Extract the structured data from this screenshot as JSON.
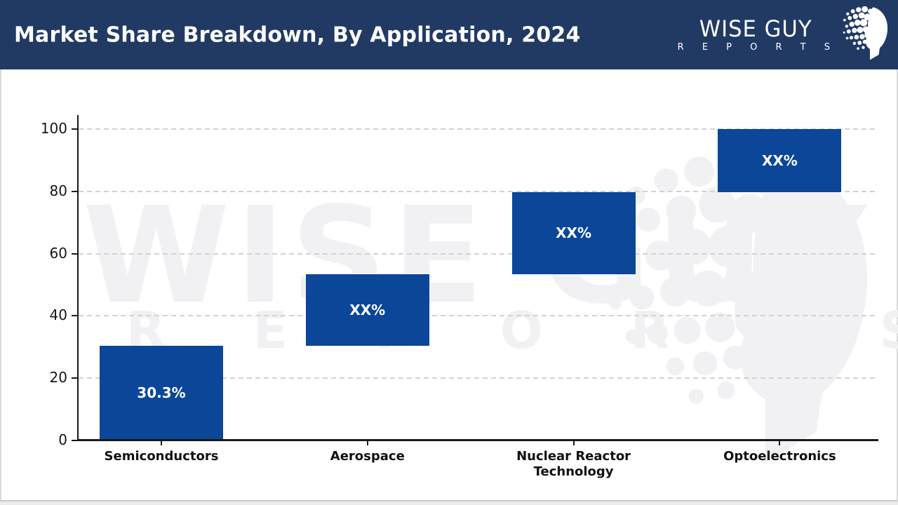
{
  "header": {
    "title": "Market Share Breakdown, By Application, 2024",
    "background_color": "#213a64",
    "logo": {
      "line1": "WISE GUY",
      "line2": "R E P O R T S",
      "icon": "dotted-face-profile"
    }
  },
  "watermark": {
    "line1": "WISE GUY",
    "line2": "R E P O R T S",
    "icon": "dotted-face-profile",
    "color": "#f1f1f4"
  },
  "chart_data": {
    "type": "bar",
    "subtype": "waterfall",
    "title": "Market Share Breakdown, By Application, 2024",
    "xlabel": "",
    "ylabel": "",
    "categories": [
      "Semiconductors",
      "Aerospace",
      "Nuclear Reactor Technology",
      "Optoelectronics"
    ],
    "segments": [
      {
        "category": "Semiconductors",
        "start": 0,
        "end": 30.3,
        "label": "30.3%"
      },
      {
        "category": "Aerospace",
        "start": 30.3,
        "end": 53.4,
        "label": "XX%"
      },
      {
        "category": "Nuclear Reactor Technology",
        "start": 53.4,
        "end": 79.7,
        "label": "XX%"
      },
      {
        "category": "Optoelectronics",
        "start": 79.7,
        "end": 100,
        "label": "XX%"
      }
    ],
    "yticks": [
      0,
      20,
      40,
      60,
      80,
      100
    ],
    "ylim": [
      0,
      105
    ],
    "bar_color": "#0b4699",
    "bar_label_color": "#ffffff",
    "grid": "horizontal-dashed",
    "gridline_color": "#d2d2d2",
    "legend": "none"
  }
}
